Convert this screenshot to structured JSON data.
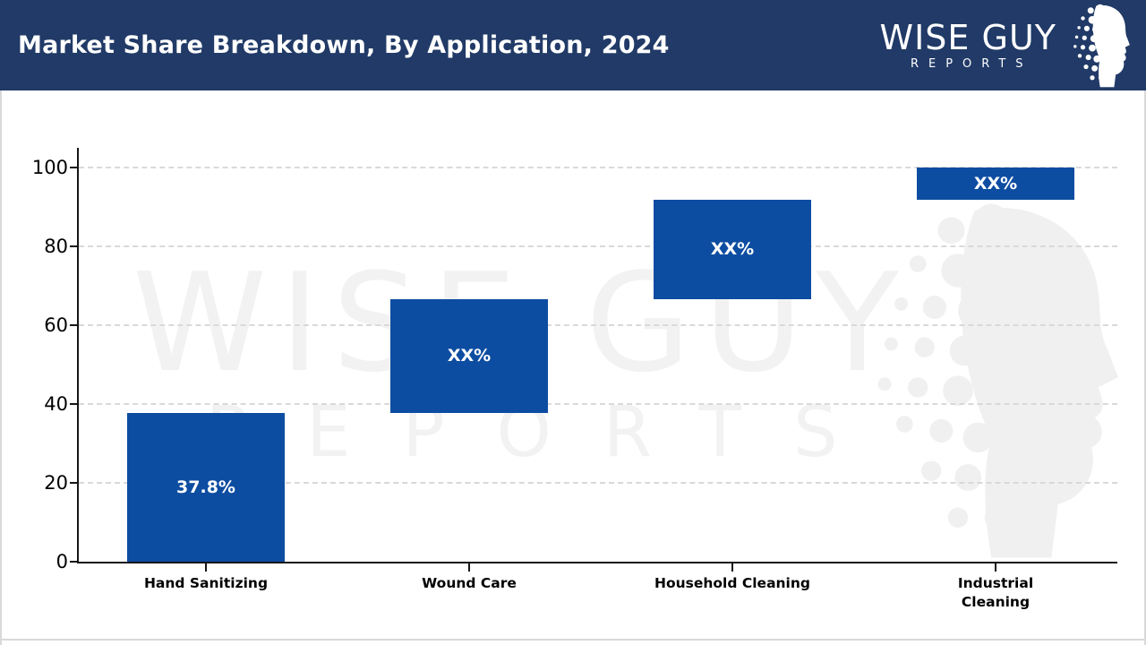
{
  "header": {
    "title": "Market Share Breakdown, By Application, 2024",
    "logo": {
      "line1": "WISE GUY",
      "line2": "REPORTS"
    },
    "bg_color": "#213a67"
  },
  "watermark": {
    "line1": "WISE GUY",
    "line2": "REPORTS"
  },
  "chart_data": {
    "type": "bar",
    "subtype": "waterfall",
    "title": "Market Share Breakdown, By Application, 2024",
    "categories": [
      "Hand Sanitizing",
      "Wound Care",
      "Household Cleaning",
      "Industrial\nCleaning"
    ],
    "segments": [
      {
        "category": "Hand Sanitizing",
        "start": 0,
        "end": 37.8,
        "label": "37.8%"
      },
      {
        "category": "Wound Care",
        "start": 37.8,
        "end": 66.6,
        "label": "XX%"
      },
      {
        "category": "Household Cleaning",
        "start": 66.6,
        "end": 91.9,
        "label": "XX%"
      },
      {
        "category": "Industrial Cleaning",
        "start": 91.9,
        "end": 100,
        "label": "XX%"
      }
    ],
    "yticks": [
      0,
      20,
      40,
      60,
      80,
      100
    ],
    "ylim": [
      0,
      105
    ],
    "xlabel": "",
    "ylabel": "",
    "legend": "none",
    "grid": "horizontal-dashed",
    "bar_color": "#0d4da1",
    "value_label_color": "#ffffff"
  }
}
